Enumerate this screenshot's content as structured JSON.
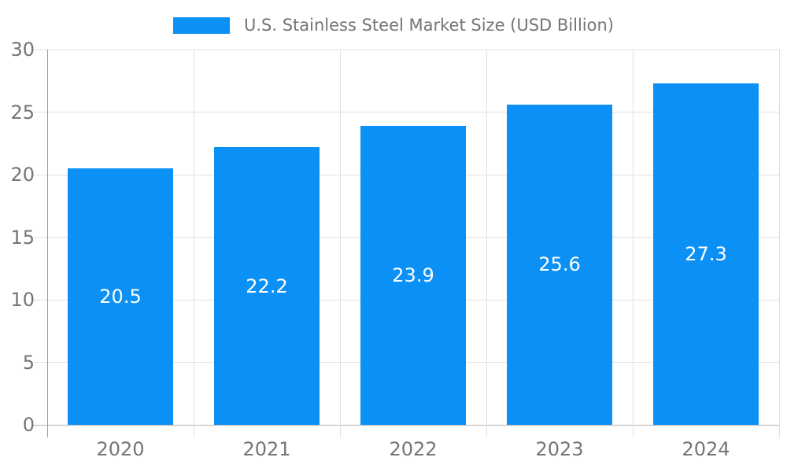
{
  "legend": {
    "label": "U.S. Stainless Steel Market Size (USD Billion)"
  },
  "chart_data": {
    "type": "bar",
    "title": "U.S. Stainless Steel Market Size (USD Billion)",
    "categories": [
      "2020",
      "2021",
      "2022",
      "2023",
      "2024"
    ],
    "series": [
      {
        "name": "U.S. Stainless Steel Market Size (USD Billion)",
        "values": [
          20.5,
          22.2,
          23.9,
          25.6,
          27.3
        ]
      }
    ],
    "value_labels": [
      "20.5",
      "22.2",
      "23.9",
      "25.6",
      "27.3"
    ],
    "xlabel": "",
    "ylabel": "",
    "ylim": [
      0,
      30
    ],
    "yticks": [
      0,
      5,
      10,
      15,
      20,
      25,
      30
    ],
    "grid": true,
    "legend_position": "top",
    "colors": {
      "bar": "#0b90f6",
      "bar_value_text": "#ffffff",
      "tick_text": "#757575",
      "legend_text": "#757575",
      "gridline": "#e0e0e0",
      "axis_line": "#9b9b9b",
      "zero_line": "#b0b0b0",
      "background": "#ffffff"
    }
  }
}
